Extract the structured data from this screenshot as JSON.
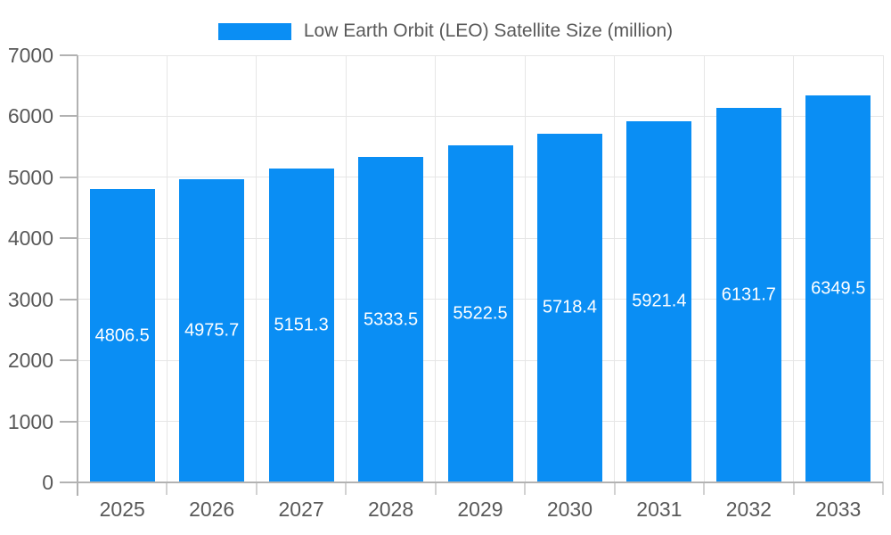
{
  "legend": {
    "label": "Low Earth Orbit (LEO) Satellite Size (million)"
  },
  "chart_data": {
    "type": "bar",
    "title": "Low Earth Orbit (LEO) Satellite Size (million)",
    "categories": [
      "2025",
      "2026",
      "2027",
      "2028",
      "2029",
      "2030",
      "2031",
      "2032",
      "2033"
    ],
    "values": [
      4806.5,
      4975.7,
      5151.3,
      5333.5,
      5522.5,
      5718.4,
      5921.4,
      6131.7,
      6349.5
    ],
    "value_labels": [
      "4806.5",
      "4975.7",
      "5151.3",
      "5333.5",
      "5522.5",
      "5718.4",
      "5921.4",
      "6131.7",
      "6349.5"
    ],
    "xlabel": "",
    "ylabel": "",
    "ylim": [
      0,
      7000
    ],
    "yticks": [
      0,
      1000,
      2000,
      3000,
      4000,
      5000,
      6000,
      7000
    ],
    "grid": true,
    "legend_position": "top",
    "bar_color": "#0a8ef4",
    "value_label_color": "#ffffff",
    "grid_color": "#e6e6e6",
    "axis_color": "#b2b2b2",
    "tick_label_color": "#595959"
  }
}
